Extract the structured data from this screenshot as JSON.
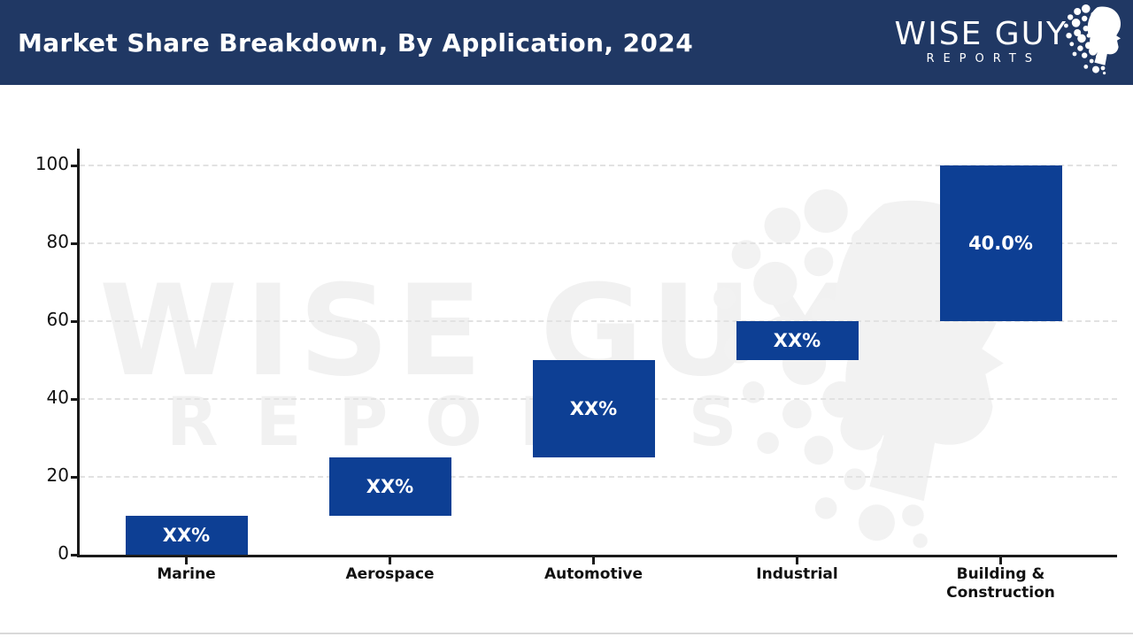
{
  "header": {
    "title": "Market Share Breakdown, By Application, 2024",
    "logo": {
      "primary": "WISE GUY",
      "secondary": "REPORTS"
    }
  },
  "watermark": {
    "primary": "WISE GUY",
    "secondary": "REPORTS"
  },
  "chart_data": {
    "type": "bar",
    "subtype": "waterfall",
    "title": "Market Share Breakdown, By Application, 2024",
    "categories": [
      "Marine",
      "Aerospace",
      "Automotive",
      "Industrial",
      "Building & Construction"
    ],
    "series": [
      {
        "name": "Market Share",
        "segment_start": [
          0,
          10,
          25,
          50,
          60
        ],
        "segment_end": [
          10,
          25,
          50,
          60,
          100
        ]
      }
    ],
    "segment_values_pct": [
      10,
      15,
      25,
      10,
      40
    ],
    "bar_labels": [
      "XX%",
      "XX%",
      "XX%",
      "XX%",
      "40.0%"
    ],
    "xlabel": "",
    "ylabel": "",
    "ylim": [
      0,
      100
    ],
    "yticks": [
      0,
      20,
      40,
      60,
      80,
      100
    ],
    "grid": "horizontal-dashed",
    "legend": false,
    "bar_color": "#0d3f94"
  },
  "colors": {
    "header_bg": "#203864",
    "bar": "#0d3f94",
    "grid": "#e2e2e2",
    "axis": "#1a1a1a",
    "watermark": "#f1f1f1",
    "bar_label_text": "#ffffff",
    "footer_line": "#d9d9d9"
  }
}
